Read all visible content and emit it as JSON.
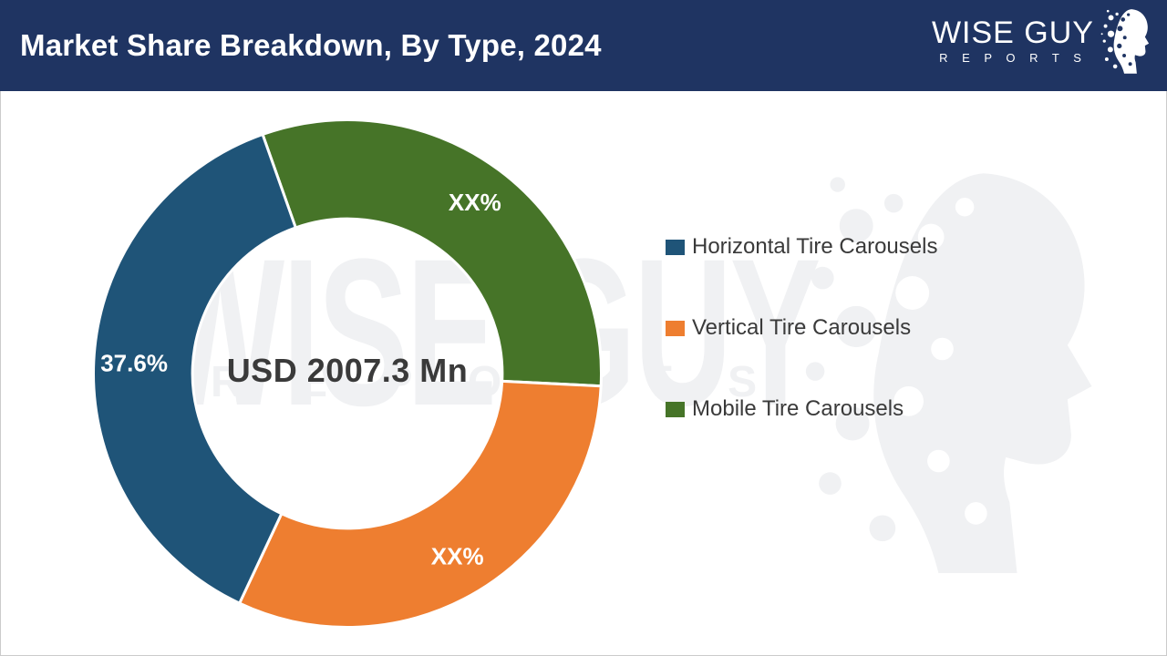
{
  "header": {
    "title": "Market Share Breakdown, By Type, 2024",
    "background_color": "#1F3462",
    "logo": {
      "line1": "WISE GUY",
      "line2": "R E P O R T S"
    }
  },
  "watermark": {
    "text_large": "WISE GUY",
    "text_small": "R E P O R T S"
  },
  "chart_data": {
    "type": "pie",
    "subtype": "donut",
    "title": "Market Share Breakdown, By Type, 2024",
    "center_label": "USD 2007.3 Mn",
    "start_angle_deg": -19.5,
    "inner_radius_ratio": 0.61,
    "legend_position": "right",
    "segments": [
      {
        "name": "Mobile Tire Carousels",
        "label": "XX%",
        "value": 31.2,
        "color": "#467428"
      },
      {
        "name": "Vertical Tire Carousels",
        "label": "XX%",
        "value": 31.2,
        "color": "#EE7E30"
      },
      {
        "name": "Horizontal Tire Carousels",
        "label": "37.6%",
        "value": 37.6,
        "color": "#1F5478"
      }
    ],
    "legend": [
      {
        "label": "Horizontal Tire Carousels",
        "color": "#1F5478"
      },
      {
        "label": "Vertical Tire Carousels",
        "color": "#EE7E30"
      },
      {
        "label": "Mobile Tire Carousels",
        "color": "#467428"
      }
    ]
  }
}
